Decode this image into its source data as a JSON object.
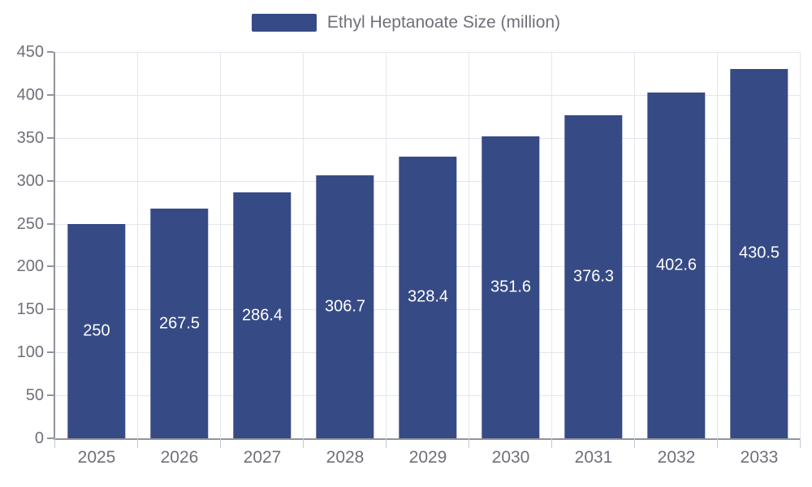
{
  "chart_data": {
    "type": "bar",
    "title": "",
    "categories": [
      "2025",
      "2026",
      "2027",
      "2028",
      "2029",
      "2030",
      "2031",
      "2032",
      "2033"
    ],
    "series": [
      {
        "name": "Ethyl Heptanoate Size (million)",
        "values": [
          250,
          267.5,
          286.4,
          306.7,
          328.4,
          351.6,
          376.3,
          402.6,
          430.5
        ]
      }
    ],
    "xlabel": "",
    "ylabel": "",
    "ylim": [
      0,
      450
    ],
    "ytick_step": 50,
    "grid": true,
    "legend_position": "top-center",
    "value_labels_position": "inside-middle",
    "bar_band_fraction": 0.7,
    "colors": {
      "bar": "#364A85",
      "axis_text": "#6E7079",
      "value_label": "#FFFFFF",
      "grid_line": "#E3E6EC",
      "axis_line": "#90949C",
      "x_tick": "#C2C9D9"
    }
  }
}
